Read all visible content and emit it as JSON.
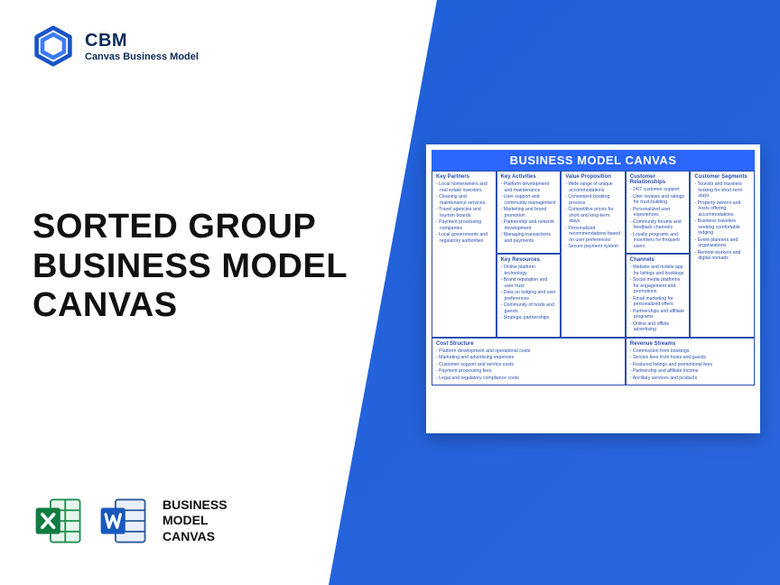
{
  "brand": {
    "acronym": "CBM",
    "name": "Canvas Business Model"
  },
  "headline": {
    "l1": "SORTED GROUP",
    "l2": "BUSINESS MODEL",
    "l3": "CANVAS"
  },
  "footer": {
    "l1": "BUSINESS",
    "l2": "MODEL",
    "l3": "CANVAS"
  },
  "canvas": {
    "title": "BUSINESS MODEL CANVAS",
    "sections": {
      "kp": {
        "name": "Key Partners",
        "items": [
          "Local homeowners and real estate investors",
          "Cleaning and maintenance services",
          "Travel agencies and tourism boards",
          "Payment processing companies",
          "Local governments and regulatory authorities"
        ]
      },
      "ka": {
        "name": "Key Activities",
        "items": [
          "Platform development and maintenance",
          "User support and community management",
          "Marketing and brand promotion",
          "Partnership and network development",
          "Managing transactions and payments"
        ]
      },
      "kr": {
        "name": "Key Resources",
        "items": [
          "Online platform technology",
          "Brand reputation and user trust",
          "Data on lodging and user preferences",
          "Community of hosts and guests",
          "Strategic partnerships"
        ]
      },
      "vp": {
        "name": "Value Proposition",
        "items": [
          "Wide range of unique accommodations",
          "Convenient booking process",
          "Competitive prices for short and long-term stays",
          "Personalized recommendations based on user preferences",
          "Secure payment system"
        ]
      },
      "cr": {
        "name": "Customer Relationships",
        "items": [
          "24/7 customer support",
          "User reviews and ratings for trust-building",
          "Personalized user experiences",
          "Community forums and feedback channels",
          "Loyalty programs and incentives for frequent users"
        ]
      },
      "ch": {
        "name": "Channels",
        "items": [
          "Website and mobile app for listings and bookings",
          "Social media platforms for engagement and promotions",
          "Email marketing for personalized offers",
          "Partnerships and affiliate programs",
          "Online and offline advertising"
        ]
      },
      "cs": {
        "name": "Customer Segments",
        "items": [
          "Tourists and travelers looking for short-term stays",
          "Property owners and hosts offering accommodations",
          "Business travelers seeking comfortable lodging",
          "Event planners and organizations",
          "Remote workers and digital nomads"
        ]
      },
      "cost": {
        "name": "Cost Structure",
        "items": [
          "Platform development and operational costs",
          "Marketing and advertising expenses",
          "Customer support and service costs",
          "Payment processing fees",
          "Legal and regulatory compliance costs"
        ]
      },
      "rev": {
        "name": "Revenue Streams",
        "items": [
          "Commission from bookings",
          "Service fees from hosts and guests",
          "Featured listings and promotional fees",
          "Partnership and affiliate income",
          "Ancillary services and products"
        ]
      }
    }
  },
  "colors": {
    "blue": "#2a66df",
    "accent": "#2a66ff",
    "ink": "#0b2a55"
  }
}
